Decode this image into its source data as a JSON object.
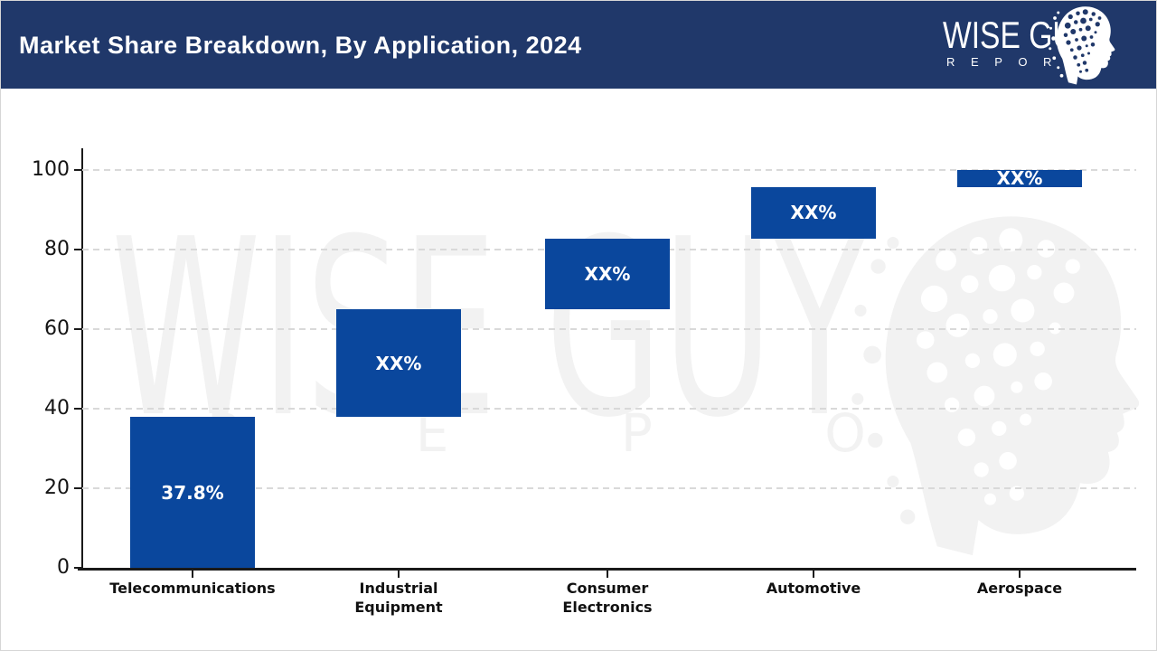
{
  "header": {
    "title": "Market Share Breakdown, By Application, 2024",
    "logo": {
      "brand_top": "WISE GUY",
      "brand_bottom": "R E P O R T S"
    }
  },
  "watermark": {
    "line1": "WISE GUY",
    "line2": "R E P O R T S"
  },
  "colors": {
    "header_bg": "#20386a",
    "bar": "#0a479d",
    "grid": "#d9d9d9",
    "axis": "#1a1a1a",
    "watermark": "#f2f2f2",
    "bar_label": "#ffffff",
    "title_text": "#ffffff"
  },
  "chart_data": {
    "type": "bar",
    "subtype": "waterfall",
    "title": "Market Share Breakdown, By Application, 2024",
    "categories": [
      "Telecommunications",
      "Industrial Equipment",
      "Consumer Electronics",
      "Automotive",
      "Aerospace"
    ],
    "category_label_lines": [
      [
        "Telecommunications"
      ],
      [
        "Industrial",
        "Equipment"
      ],
      [
        "Consumer",
        "Electronics"
      ],
      [
        "Automotive"
      ],
      [
        "Aerospace"
      ]
    ],
    "segments": [
      {
        "category": "Telecommunications",
        "start": 0,
        "end": 37.8,
        "label": "37.8%"
      },
      {
        "category": "Industrial Equipment",
        "start": 37.8,
        "end": 65,
        "label": "XX%"
      },
      {
        "category": "Consumer Electronics",
        "start": 65,
        "end": 82.7,
        "label": "XX%"
      },
      {
        "category": "Automotive",
        "start": 82.7,
        "end": 95.6,
        "label": "XX%"
      },
      {
        "category": "Aerospace",
        "start": 95.6,
        "end": 100,
        "label": "XX%"
      }
    ],
    "y_ticks": [
      0,
      20,
      40,
      60,
      80,
      100
    ],
    "ylim": [
      0,
      100
    ],
    "xlabel": "",
    "ylabel": "",
    "grid": "dashed-horizontal",
    "legend": null
  }
}
